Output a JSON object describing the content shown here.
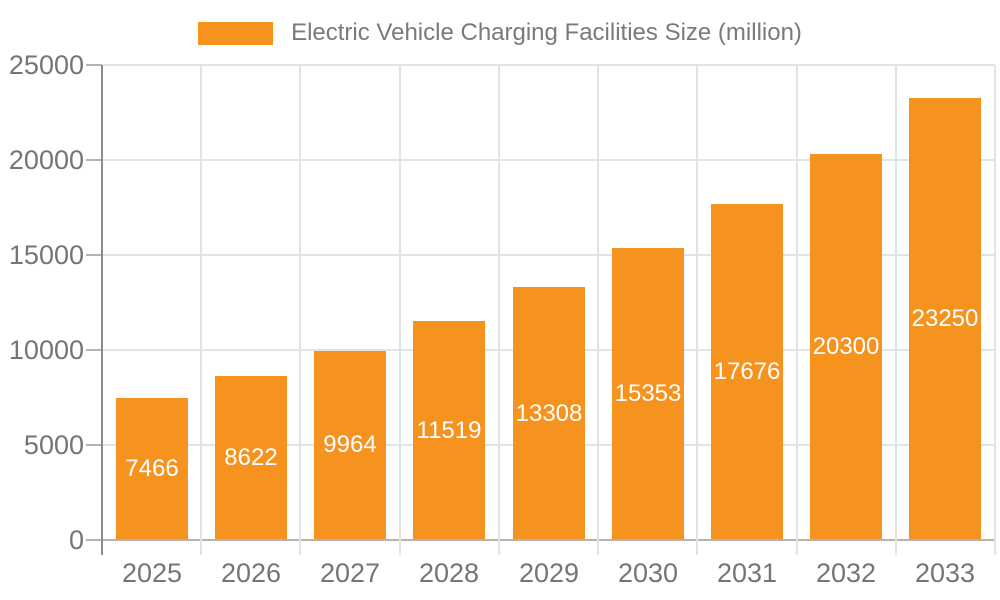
{
  "legend": {
    "label": "Electric Vehicle Charging Facilities Size (million)"
  },
  "chart_data": {
    "type": "bar",
    "title": "Electric Vehicle Charging Facilities Size (million)",
    "categories": [
      "2025",
      "2026",
      "2027",
      "2028",
      "2029",
      "2030",
      "2031",
      "2032",
      "2033"
    ],
    "series": [
      {
        "name": "Electric Vehicle Charging Facilities Size (million)",
        "values": [
          7466,
          8622,
          9964,
          11519,
          13308,
          15353,
          17676,
          20300,
          23250
        ]
      }
    ],
    "value_labels": [
      "7466",
      "8622",
      "9964",
      "11519",
      "13308",
      "15353",
      "17676",
      "20300",
      "23250"
    ],
    "xlabel": "",
    "ylabel": "",
    "ylim": [
      0,
      25000
    ],
    "yticks": [
      0,
      5000,
      10000,
      15000,
      20000,
      25000
    ],
    "ytick_labels": [
      "0",
      "5000",
      "10000",
      "15000",
      "20000",
      "25000"
    ],
    "grid": true,
    "legend_position": "top",
    "colors": {
      "bar": "#F6921E",
      "gridline": "#E3E3E3",
      "baseline": "#B3B3B3",
      "axis_line": "#8C8C8C",
      "tick_dash": "#B3B3B3",
      "tick_text": "#757575",
      "legend_text": "#7A7A7A",
      "value_text": "#FFFFFF",
      "background": "#FFFFFF"
    }
  }
}
